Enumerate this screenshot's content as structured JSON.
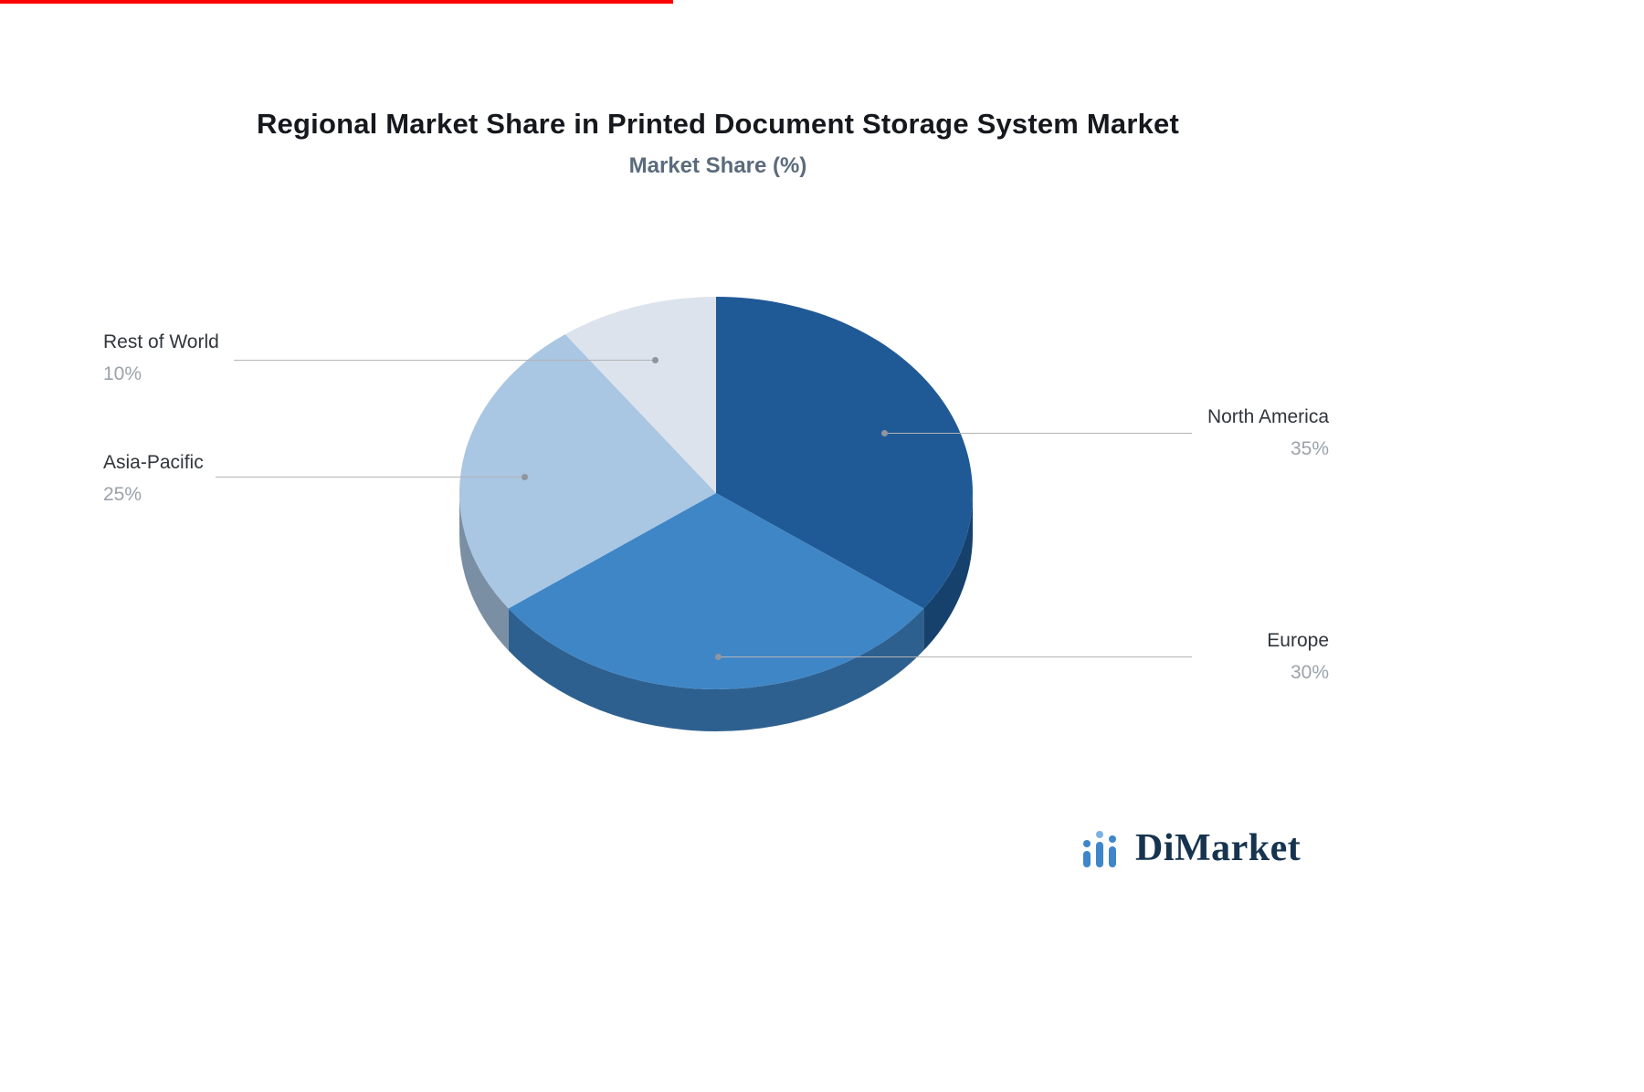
{
  "header": {
    "title": "Regional Market Share in Printed Document Storage System Market",
    "subtitle": "Market Share (%)"
  },
  "chart_data": {
    "type": "pie",
    "title": "Regional Market Share in Printed Document Storage System Market",
    "subtitle": "Market Share (%)",
    "unit": "%",
    "style": "3d-pie",
    "direction": "clockwise",
    "start_angle_deg": 0,
    "legend_position": "none",
    "label_style": "callout",
    "slices": [
      {
        "label": "North America",
        "value": 35,
        "display": "35%",
        "color": "#1f5a96"
      },
      {
        "label": "Europe",
        "value": 30,
        "display": "30%",
        "color": "#3f86c6"
      },
      {
        "label": "Asia-Pacific",
        "value": 25,
        "display": "25%",
        "color": "#a9c6e2"
      },
      {
        "label": "Rest of World",
        "value": 10,
        "display": "10%",
        "color": "#dce3ed"
      }
    ]
  },
  "logo": {
    "text": "DiMarket",
    "icon": "bar-chart-icon",
    "accent_color": "#3e86c9",
    "text_color": "#17344f"
  },
  "colors": {
    "background": "#ffffff",
    "title": "#15181d",
    "subtitle": "#5b6b7c",
    "label": "#30363c",
    "value": "#9aa3ac",
    "leader_line": "#b4b4b4",
    "top_bar": "#ff0000"
  }
}
